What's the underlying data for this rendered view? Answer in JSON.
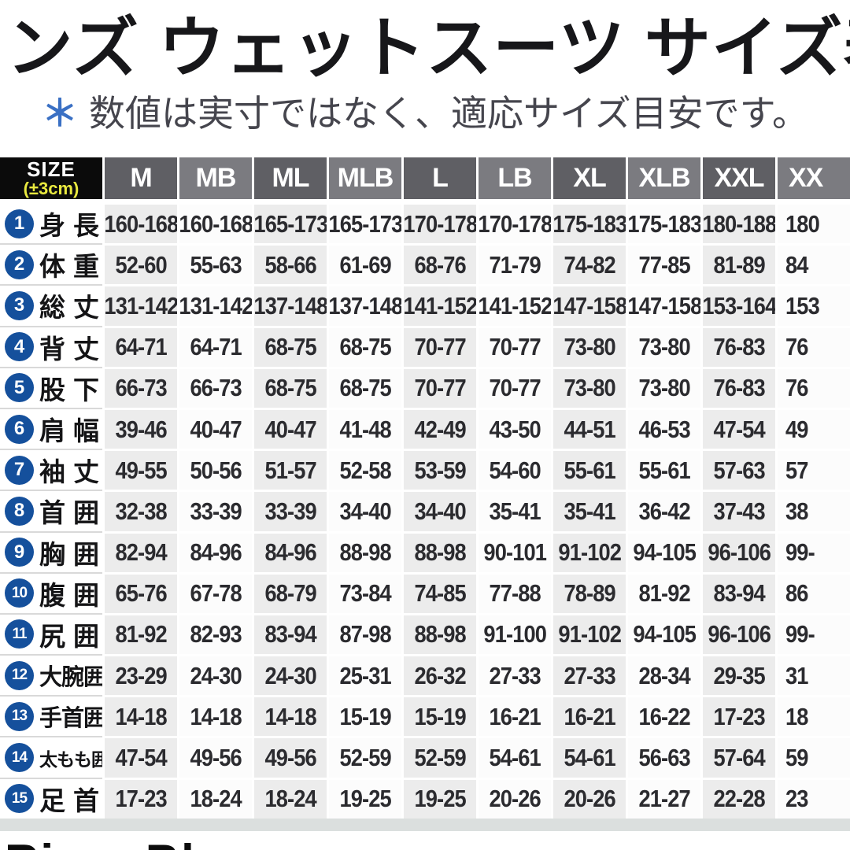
{
  "header": {
    "title": "メンズ ウェットスーツ サイズ表",
    "note_mark": "＊",
    "note": "数値は実寸ではなく、適応サイズ目安です。"
  },
  "chart_data": {
    "type": "table",
    "title": "メンズ ウェットスーツ サイズ表",
    "note": "数値は実寸ではなく、適応サイズ目安です。",
    "corner": {
      "line1": "SIZE",
      "line2": "(±3cm)"
    },
    "columns": [
      "M",
      "MB",
      "ML",
      "MLB",
      "L",
      "LB",
      "XL",
      "XLB",
      "XXL",
      "XX"
    ],
    "last_column_cut_off": true,
    "rows": [
      {
        "num": "1",
        "label": "身長",
        "values": [
          "160-168",
          "160-168",
          "165-173",
          "165-173",
          "170-178",
          "170-178",
          "175-183",
          "175-183",
          "180-188",
          "180"
        ]
      },
      {
        "num": "2",
        "label": "体重",
        "values": [
          "52-60",
          "55-63",
          "58-66",
          "61-69",
          "68-76",
          "71-79",
          "74-82",
          "77-85",
          "81-89",
          "84"
        ]
      },
      {
        "num": "3",
        "label": "総丈",
        "values": [
          "131-142",
          "131-142",
          "137-148",
          "137-148",
          "141-152",
          "141-152",
          "147-158",
          "147-158",
          "153-164",
          "153"
        ]
      },
      {
        "num": "4",
        "label": "背丈",
        "values": [
          "64-71",
          "64-71",
          "68-75",
          "68-75",
          "70-77",
          "70-77",
          "73-80",
          "73-80",
          "76-83",
          "76"
        ]
      },
      {
        "num": "5",
        "label": "股下",
        "values": [
          "66-73",
          "66-73",
          "68-75",
          "68-75",
          "70-77",
          "70-77",
          "73-80",
          "73-80",
          "76-83",
          "76"
        ]
      },
      {
        "num": "6",
        "label": "肩幅",
        "values": [
          "39-46",
          "40-47",
          "40-47",
          "41-48",
          "42-49",
          "43-50",
          "44-51",
          "46-53",
          "47-54",
          "49"
        ]
      },
      {
        "num": "7",
        "label": "袖丈",
        "values": [
          "49-55",
          "50-56",
          "51-57",
          "52-58",
          "53-59",
          "54-60",
          "55-61",
          "55-61",
          "57-63",
          "57"
        ]
      },
      {
        "num": "8",
        "label": "首囲",
        "values": [
          "32-38",
          "33-39",
          "33-39",
          "34-40",
          "34-40",
          "35-41",
          "35-41",
          "36-42",
          "37-43",
          "38"
        ]
      },
      {
        "num": "9",
        "label": "胸囲",
        "values": [
          "82-94",
          "84-96",
          "84-96",
          "88-98",
          "88-98",
          "90-101",
          "91-102",
          "94-105",
          "96-106",
          "99-"
        ]
      },
      {
        "num": "10",
        "label": "腹囲",
        "values": [
          "65-76",
          "67-78",
          "68-79",
          "73-84",
          "74-85",
          "77-88",
          "78-89",
          "81-92",
          "83-94",
          "86"
        ]
      },
      {
        "num": "11",
        "label": "尻囲",
        "values": [
          "81-92",
          "82-93",
          "83-94",
          "87-98",
          "88-98",
          "91-100",
          "91-102",
          "94-105",
          "96-106",
          "99-"
        ]
      },
      {
        "num": "12",
        "label": "大腕囲",
        "values": [
          "23-29",
          "24-30",
          "24-30",
          "25-31",
          "26-32",
          "27-33",
          "27-33",
          "28-34",
          "29-35",
          "31"
        ]
      },
      {
        "num": "13",
        "label": "手首囲",
        "values": [
          "14-18",
          "14-18",
          "14-18",
          "15-19",
          "15-19",
          "16-21",
          "16-21",
          "16-22",
          "17-23",
          "18"
        ]
      },
      {
        "num": "14",
        "label": "太もも囲",
        "values": [
          "47-54",
          "49-56",
          "49-56",
          "52-59",
          "52-59",
          "54-61",
          "54-61",
          "56-63",
          "57-64",
          "59"
        ]
      },
      {
        "num": "15",
        "label": "足首",
        "values": [
          "17-23",
          "18-24",
          "18-24",
          "19-25",
          "19-25",
          "20-26",
          "20-26",
          "21-27",
          "22-28",
          "23"
        ]
      }
    ]
  },
  "footer": {
    "brand": "River Blue"
  },
  "colors": {
    "circle_blue": "#15509c",
    "corner_black": "#0b0b0b",
    "corner_yellow": "#e9e93f",
    "header_dark_gray": "#5f5f64",
    "header_light_gray": "#7b7b80",
    "column_gray": "#ececec",
    "column_white": "#fcfcfc",
    "note_asterisk_blue": "#3a70c4",
    "footer_band_gray": "#dbdfde"
  }
}
